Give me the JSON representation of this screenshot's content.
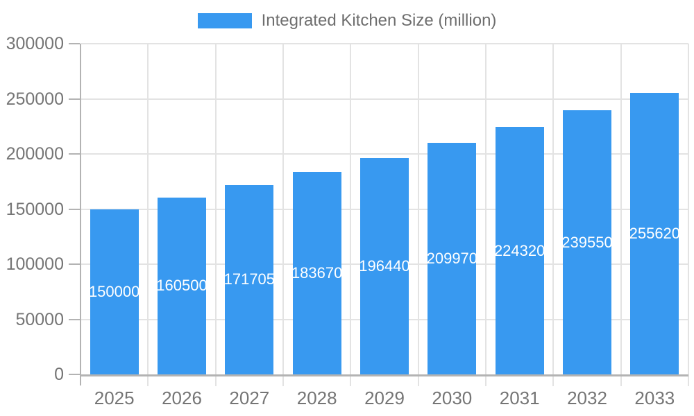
{
  "legend": {
    "label": "Integrated Kitchen Size (million)"
  },
  "chart_data": {
    "type": "bar",
    "title": "",
    "xlabel": "",
    "ylabel": "",
    "categories": [
      "2025",
      "2026",
      "2027",
      "2028",
      "2029",
      "2030",
      "2031",
      "2032",
      "2033"
    ],
    "series": [
      {
        "name": "Integrated Kitchen Size (million)",
        "values": [
          150000,
          160500,
          171705,
          183670,
          196440,
          209970,
          224320,
          239550,
          255620
        ]
      }
    ],
    "value_labels_shown": true,
    "ylim": [
      0,
      300000
    ],
    "yticks": [
      0,
      50000,
      100000,
      150000,
      200000,
      250000,
      300000
    ],
    "grid": true,
    "legend_position": "top-center",
    "colors": {
      "bar": "#3899f0",
      "value_label": "#ffffff",
      "axis_line": "#b3b3b3",
      "gridline": "#e3e3e3",
      "tick_label": "#757575",
      "legend_text": "#6e6e6e"
    }
  }
}
